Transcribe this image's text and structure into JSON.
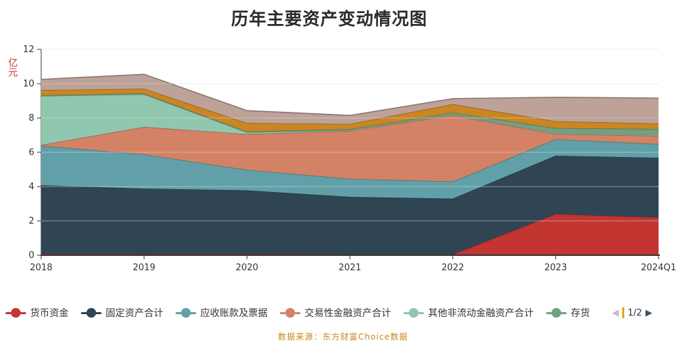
{
  "chart_data": {
    "type": "area",
    "stacked": true,
    "title": "历年主要资产变动情况图",
    "categories": [
      "2018",
      "2019",
      "2020",
      "2021",
      "2022",
      "2023",
      "2024Q1"
    ],
    "series": [
      {
        "name": "货币资金",
        "color": "#c23531",
        "values": [
          0.08,
          0.08,
          0.08,
          0.05,
          0.05,
          2.4,
          2.2
        ]
      },
      {
        "name": "固定资产合计",
        "color": "#2f4554",
        "values": [
          4.0,
          3.8,
          3.7,
          3.35,
          3.25,
          3.4,
          3.48
        ]
      },
      {
        "name": "应收账款及票据",
        "color": "#61a0a8",
        "values": [
          2.3,
          2.0,
          1.2,
          1.05,
          1.0,
          0.96,
          0.8
        ]
      },
      {
        "name": "交易性金融资产合计",
        "color": "#d48265",
        "values": [
          0.05,
          1.6,
          2.08,
          2.8,
          3.86,
          0.3,
          0.48
        ]
      },
      {
        "name": "其他非流动金融资产合计",
        "color": "#91c7ae",
        "values": [
          2.85,
          1.9,
          0.1,
          0.05,
          0.05,
          0.05,
          0.05
        ]
      },
      {
        "name": "存货",
        "color": "#749f83",
        "values": [
          0.05,
          0.05,
          0.05,
          0.05,
          0.1,
          0.3,
          0.35
        ]
      },
      {
        "name": "",
        "color": "#ca8622",
        "values": [
          0.3,
          0.28,
          0.5,
          0.3,
          0.5,
          0.4,
          0.32
        ]
      },
      {
        "name": "",
        "color": "#bda29a",
        "values": [
          0.62,
          0.84,
          0.72,
          0.5,
          0.32,
          1.4,
          1.48
        ]
      }
    ],
    "xlabel": "",
    "ylabel": "亿元",
    "ylim": [
      0,
      12
    ],
    "y_ticks": [
      "0",
      "2",
      "4",
      "6",
      "8",
      "10",
      "12"
    ],
    "grid": true,
    "legend_position": "bottom"
  },
  "colors": {
    "axis_text": "#333333",
    "y_axis_name": "#c23531",
    "grid_line": "#d9d9d9",
    "axis_line": "#333333",
    "title_text": "#2b2b2b",
    "source_text": "#c8871e",
    "pager_prev": "#c0c0c0",
    "pager_bar": "#e2a419",
    "pager_next": "#3b5668"
  },
  "legend": {
    "items": [
      {
        "label": "货币资金",
        "color": "#c23531"
      },
      {
        "label": "固定资产合计",
        "color": "#2f4554"
      },
      {
        "label": "应收账款及票据",
        "color": "#61a0a8"
      },
      {
        "label": "交易性金融资产合计",
        "color": "#d48265"
      },
      {
        "label": "其他非流动金融资产合计",
        "color": "#91c7ae"
      },
      {
        "label": "存货",
        "color": "#749f83"
      }
    ],
    "pager": {
      "prev": "◀",
      "page": "1/2",
      "next": "▶"
    }
  },
  "source": {
    "text": "数据来源：东方财富Choice数据"
  }
}
